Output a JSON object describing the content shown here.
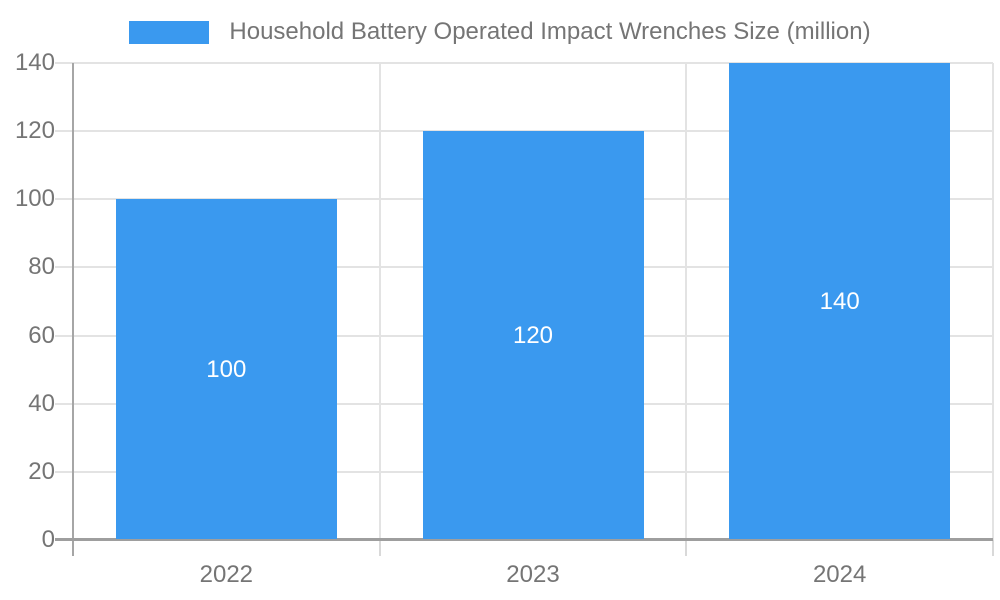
{
  "chart_data": {
    "type": "bar",
    "title": "Household Battery Operated Impact Wrenches Size (million)",
    "categories": [
      "2022",
      "2023",
      "2024"
    ],
    "values": [
      100,
      120,
      140
    ],
    "bar_labels": [
      "100",
      "120",
      "140"
    ],
    "xlabel": "",
    "ylabel": "",
    "ylim": [
      0,
      140
    ],
    "yticks": [
      0,
      20,
      40,
      60,
      80,
      100,
      120,
      140
    ],
    "grid": true,
    "legend_position": "top",
    "colors": {
      "bar": "#3a99ef",
      "legend_text": "#757575",
      "axis_text": "#757575",
      "bar_label_text": "#ffffff",
      "gridline": "#e3e3e3",
      "tick_line": "#d9d9d9",
      "axis_line": "#9e9e9e"
    }
  }
}
